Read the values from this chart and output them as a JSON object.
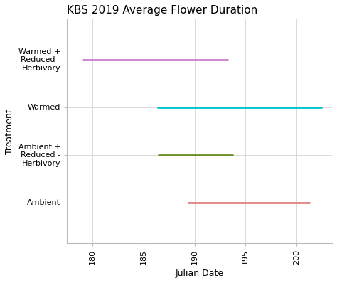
{
  "title": "KBS 2019 Average Flower Duration",
  "xlabel": "Julian Date",
  "ylabel": "Treatment",
  "treatments": [
    "Warmed +\nReduced -\nHerbivory",
    "Warmed",
    "Ambient +\nReduced -\nHerbivory",
    "Ambient"
  ],
  "lines": [
    {
      "y": 3,
      "x_start": 179.0,
      "x_end": 193.3,
      "color": "#CC79CC"
    },
    {
      "y": 2,
      "x_start": 186.3,
      "x_end": 202.5,
      "color": "#00C5CD"
    },
    {
      "y": 1,
      "x_start": 186.4,
      "x_end": 193.8,
      "color": "#6B8E23"
    },
    {
      "y": 0,
      "x_start": 189.3,
      "x_end": 201.3,
      "color": "#E08080"
    }
  ],
  "xlim": [
    177.5,
    203.5
  ],
  "xticks": [
    180,
    185,
    190,
    195,
    200
  ],
  "ylim": [
    -0.85,
    3.85
  ],
  "linewidth": 2.0,
  "bg_color": "#ffffff",
  "grid_color": "#d3d3d3",
  "title_fontsize": 11,
  "label_fontsize": 9,
  "tick_fontsize": 8,
  "ytick_fontsize": 8
}
